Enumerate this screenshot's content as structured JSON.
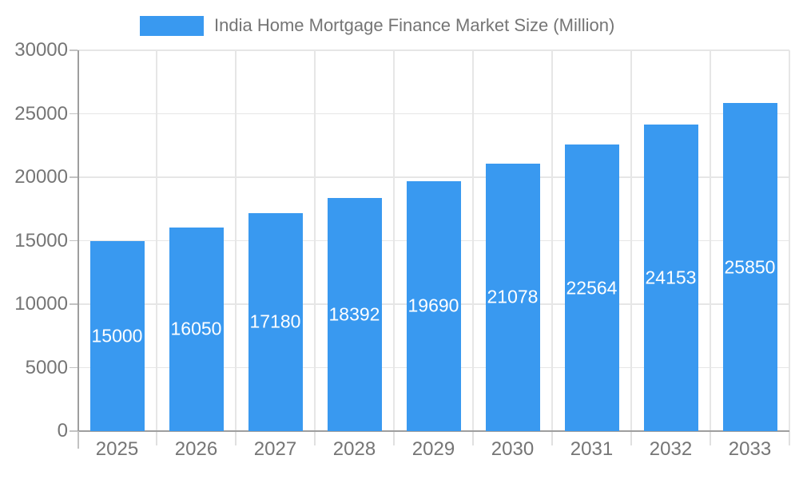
{
  "chart_data": {
    "type": "bar",
    "title": "India Home Mortgage Finance Market Size (Million)",
    "categories": [
      "2025",
      "2026",
      "2027",
      "2028",
      "2029",
      "2030",
      "2031",
      "2032",
      "2033"
    ],
    "values": [
      15000,
      16050,
      17180,
      18392,
      19690,
      21078,
      22564,
      24153,
      25850
    ],
    "value_labels": [
      "15000",
      "16050",
      "17180",
      "18392",
      "19690",
      "21078",
      "22564",
      "24153",
      "25850"
    ],
    "xlabel": "",
    "ylabel": "",
    "ylim": [
      0,
      30000
    ],
    "ytick_step": 5000,
    "ytick_labels": [
      "0",
      "5000",
      "10000",
      "15000",
      "20000",
      "25000",
      "30000"
    ],
    "grid": true,
    "legend_position": "top"
  },
  "colors": {
    "bar": "#3999F0",
    "bar_value_text": "#ffffff",
    "axis_line": "#9e9e9e",
    "axis_text": "#757575",
    "gridline": "#e6e6e6",
    "boundary_tick": "#e0e0e0",
    "y_tick": "#c2c2c2",
    "origin_tick": "#c2c2c2",
    "background": "#ffffff"
  }
}
